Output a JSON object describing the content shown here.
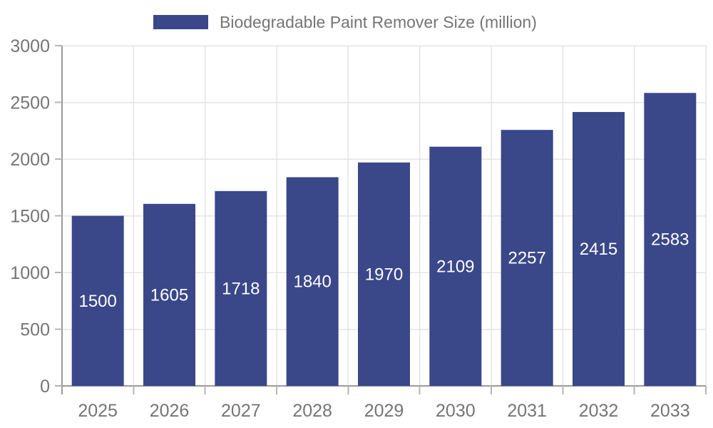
{
  "legend": {
    "label": "Biodegradable Paint Remover Size (million)"
  },
  "chart_data": {
    "type": "bar",
    "title": "Biodegradable Paint Remover Size (million)",
    "categories": [
      "2025",
      "2026",
      "2027",
      "2028",
      "2029",
      "2030",
      "2031",
      "2032",
      "2033"
    ],
    "values": [
      1500,
      1605,
      1718,
      1840,
      1970,
      2109,
      2257,
      2415,
      2583
    ],
    "xlabel": "",
    "ylabel": "",
    "ylim": [
      0,
      3000
    ],
    "yticks": [
      0,
      500,
      1000,
      1500,
      2000,
      2500,
      3000
    ],
    "grid": true,
    "legend_position": "top-center",
    "bar_labels_inside": true,
    "bar_color": "#3a4789",
    "bar_label_color": "#ffffff",
    "axis_label_color": "#757575",
    "gridline_color": "#e4e4e7",
    "axis_line_color": "#9a9a9a",
    "tick_color": "#b5b5b5"
  }
}
